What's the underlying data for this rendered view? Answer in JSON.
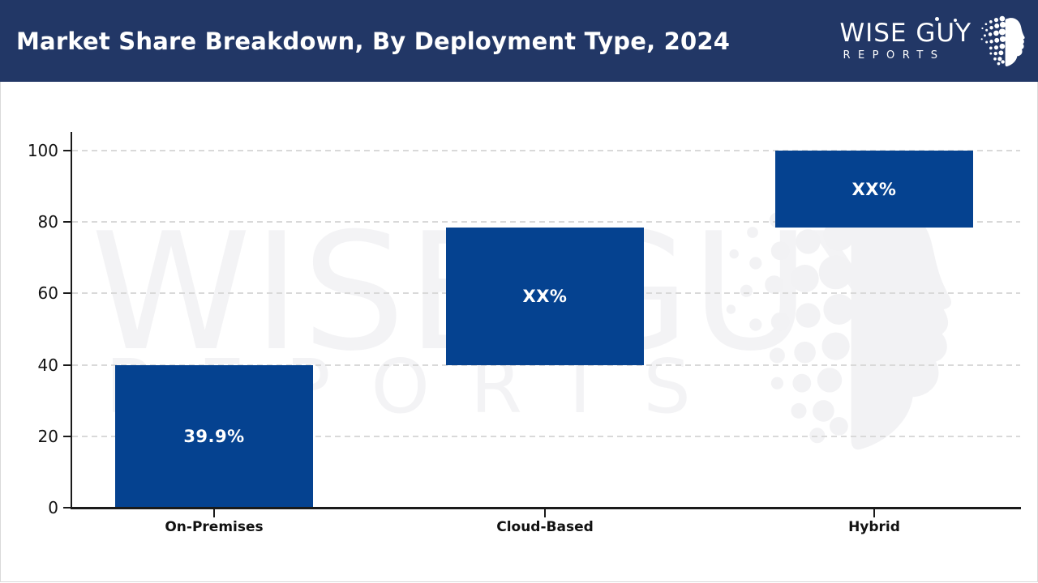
{
  "header": {
    "title": "Market Share Breakdown, By Deployment Type, 2024",
    "bg_color": "#223766",
    "logo": {
      "wordmark": "WISE GUY",
      "subtext": "REPORTS",
      "icon": "dotted-head-profile-icon",
      "color": "#ffffff"
    }
  },
  "watermark": {
    "wordmark": "WISE GUY",
    "subtext": "REPORTS",
    "icon": "dotted-head-profile-icon",
    "color": "#f3f3f5"
  },
  "chart_data": {
    "type": "bar",
    "subtype": "waterfall",
    "title": "Market Share Breakdown, By Deployment Type, 2024",
    "categories": [
      "On-Premises",
      "Cloud-Based",
      "Hybrid"
    ],
    "series": [
      {
        "name": "Market Share",
        "segments": [
          {
            "category": "On-Premises",
            "start": 0,
            "end": 39.9,
            "label": "39.9%"
          },
          {
            "category": "Cloud-Based",
            "start": 39.9,
            "end": 78.4,
            "label": "XX%"
          },
          {
            "category": "Hybrid",
            "start": 78.4,
            "end": 100,
            "label": "XX%"
          }
        ]
      }
    ],
    "xlabel": "",
    "ylabel": "",
    "ylim": [
      0,
      100
    ],
    "yticks": [
      0,
      20,
      40,
      60,
      80,
      100
    ],
    "bar_color": "#054290",
    "value_label_color": "#ffffff",
    "gridline_color": "#d9d9d9",
    "gridline_style": "dashed",
    "grid": "horizontal only",
    "legend": "none",
    "background": "#ffffff"
  }
}
